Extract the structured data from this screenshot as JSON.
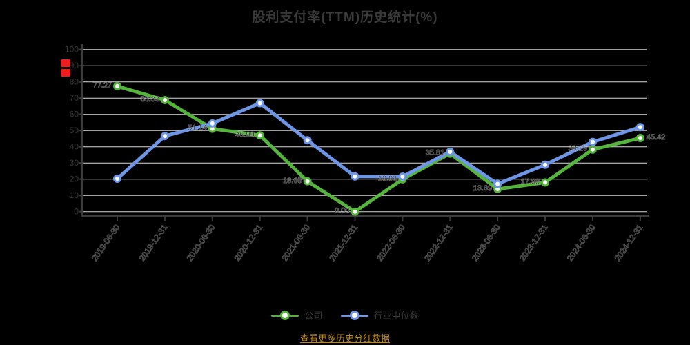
{
  "title": "股利支付率(TTM)历史统计(%)",
  "colors": {
    "company": "#55B43C",
    "industry": "#6E96E6",
    "grid": "#D8D8D8",
    "axis": "#3C3C3C",
    "text": "#3A3A3A",
    "value_label": "#3A3A3A",
    "marker_fill": "#FFFFFF",
    "link": "#BF8B11",
    "red_glyph": "#EE1C1C",
    "background": "#000000"
  },
  "legend": [
    {
      "name": "公司"
    },
    {
      "name": "行业中位数"
    }
  ],
  "footer_link": "查看更多历史分红数据",
  "chart_data": {
    "type": "line",
    "categories": [
      "2019-06-30",
      "2019-12-31",
      "2020-06-30",
      "2020-12-31",
      "2021-06-30",
      "2021-12-31",
      "2022-06-30",
      "2022-12-31",
      "2023-06-30",
      "2023-12-31",
      "2024-06-30",
      "2024-12-31"
    ],
    "series": [
      {
        "name": "公司",
        "color_key": "company",
        "values": [
          77.3,
          68.8,
          51.1,
          47.0,
          18.7,
          0.0,
          19.9,
          35.8,
          13.9,
          18.0,
          38.3,
          45.4
        ],
        "labels": [
          "77.27",
          "68.83",
          "51.14",
          "46.99",
          "18.65",
          "0.00",
          "19.92",
          "35.81",
          "13.89",
          "17.98",
          "38.29",
          "45.42"
        ],
        "show_labels": true
      },
      {
        "name": "行业中位数",
        "color_key": "industry",
        "values": [
          20.3,
          46.6,
          54.4,
          66.9,
          44.0,
          21.7,
          21.6,
          36.9,
          17.1,
          28.9,
          43.0,
          52.1
        ],
        "show_labels": false
      }
    ],
    "yticks": [
      0,
      10,
      20,
      30,
      40,
      50,
      60,
      70,
      80,
      90,
      100
    ],
    "ylim": [
      0,
      100
    ],
    "xlabel": "",
    "ylabel": "",
    "grid": "horizontal",
    "legend_position": "bottom"
  }
}
